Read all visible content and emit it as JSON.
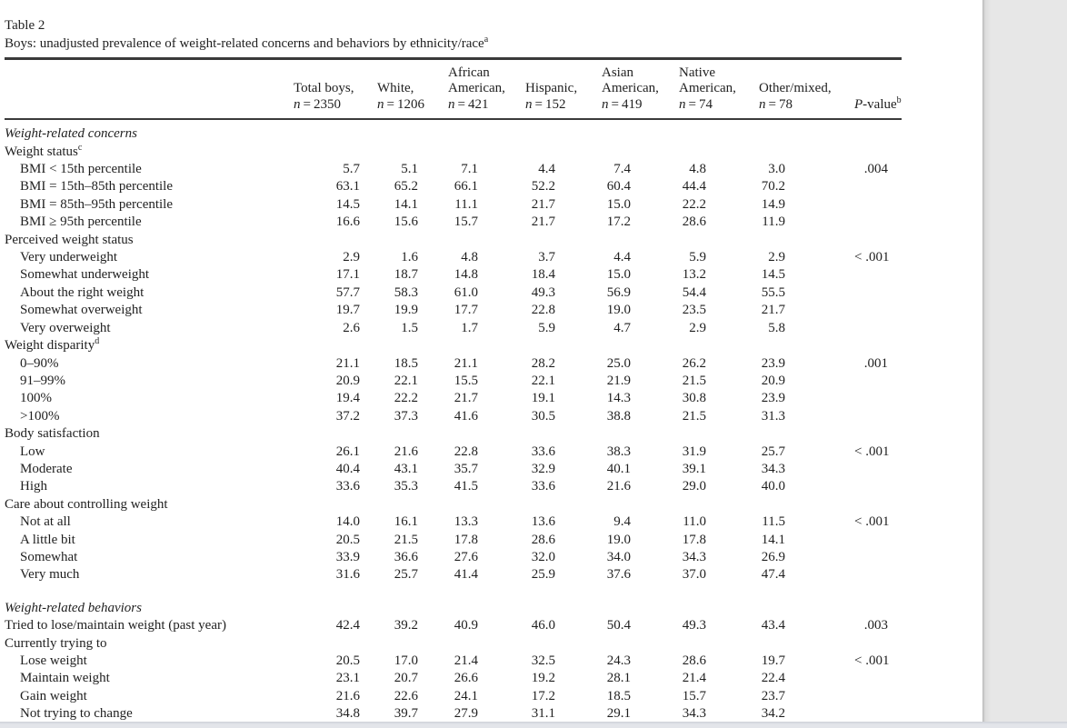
{
  "page": {
    "table_number": "Table 2",
    "caption": "Boys: unadjusted prevalence of weight-related concerns and behaviors by ethnicity/race",
    "caption_superscript": "a"
  },
  "colors": {
    "text": "#1f1f1f",
    "rule": "#3a3a3a",
    "page_edge_bar": "#e7e7e7",
    "bottom_strip": "#e3e5ea"
  },
  "table": {
    "columns": [
      {
        "lines": [
          "Total boys,"
        ],
        "n_var": "n",
        "n": "2350"
      },
      {
        "lines": [
          "White,"
        ],
        "n_var": "n",
        "n": "1206"
      },
      {
        "lines": [
          "African",
          "American,"
        ],
        "n_var": "n",
        "n": "421"
      },
      {
        "lines": [
          "Hispanic,"
        ],
        "n_var": "n",
        "n": "152"
      },
      {
        "lines": [
          "Asian",
          "American,"
        ],
        "n_var": "n",
        "n": "419"
      },
      {
        "lines": [
          "Native",
          "American,"
        ],
        "n_var": "n",
        "n": "74"
      },
      {
        "lines": [
          "Other/mixed,"
        ],
        "n_var": "n",
        "n": "78"
      },
      {
        "p_label": "P",
        "p_rest": "-value",
        "p_sup": "b"
      }
    ],
    "rows": [
      {
        "label": "Weight-related concerns",
        "italic": true,
        "indent": 0,
        "values": [
          "",
          "",
          "",
          "",
          "",
          "",
          "",
          ""
        ]
      },
      {
        "label": "Weight status",
        "sup": "c",
        "indent": 0,
        "values": [
          "",
          "",
          "",
          "",
          "",
          "",
          "",
          ""
        ]
      },
      {
        "label": "BMI < 15th percentile",
        "indent": 1,
        "values": [
          "5.7",
          "5.1",
          "7.1",
          "4.4",
          "7.4",
          "4.8",
          "3.0",
          ".004"
        ]
      },
      {
        "label": "BMI = 15th–85th percentile",
        "indent": 1,
        "values": [
          "63.1",
          "65.2",
          "66.1",
          "52.2",
          "60.4",
          "44.4",
          "70.2",
          ""
        ]
      },
      {
        "label": "BMI = 85th–95th percentile",
        "indent": 1,
        "values": [
          "14.5",
          "14.1",
          "11.1",
          "21.7",
          "15.0",
          "22.2",
          "14.9",
          ""
        ]
      },
      {
        "label": "BMI ≥ 95th percentile",
        "indent": 1,
        "values": [
          "16.6",
          "15.6",
          "15.7",
          "21.7",
          "17.2",
          "28.6",
          "11.9",
          ""
        ]
      },
      {
        "label": "Perceived weight status",
        "indent": 0,
        "values": [
          "",
          "",
          "",
          "",
          "",
          "",
          "",
          ""
        ]
      },
      {
        "label": "Very underweight",
        "indent": 1,
        "values": [
          "2.9",
          "1.6",
          "4.8",
          "3.7",
          "4.4",
          "5.9",
          "2.9",
          "< .001"
        ]
      },
      {
        "label": "Somewhat underweight",
        "indent": 1,
        "values": [
          "17.1",
          "18.7",
          "14.8",
          "18.4",
          "15.0",
          "13.2",
          "14.5",
          ""
        ]
      },
      {
        "label": "About the right weight",
        "indent": 1,
        "values": [
          "57.7",
          "58.3",
          "61.0",
          "49.3",
          "56.9",
          "54.4",
          "55.5",
          ""
        ]
      },
      {
        "label": "Somewhat overweight",
        "indent": 1,
        "values": [
          "19.7",
          "19.9",
          "17.7",
          "22.8",
          "19.0",
          "23.5",
          "21.7",
          ""
        ]
      },
      {
        "label": "Very overweight",
        "indent": 1,
        "values": [
          "2.6",
          "1.5",
          "1.7",
          "5.9",
          "4.7",
          "2.9",
          "5.8",
          ""
        ]
      },
      {
        "label": "Weight disparity",
        "sup": "d",
        "indent": 0,
        "values": [
          "",
          "",
          "",
          "",
          "",
          "",
          "",
          ""
        ]
      },
      {
        "label": "0–90%",
        "indent": 1,
        "values": [
          "21.1",
          "18.5",
          "21.1",
          "28.2",
          "25.0",
          "26.2",
          "23.9",
          ".001"
        ]
      },
      {
        "label": "91–99%",
        "indent": 1,
        "values": [
          "20.9",
          "22.1",
          "15.5",
          "22.1",
          "21.9",
          "21.5",
          "20.9",
          ""
        ]
      },
      {
        "label": "100%",
        "indent": 1,
        "values": [
          "19.4",
          "22.2",
          "21.7",
          "19.1",
          "14.3",
          "30.8",
          "23.9",
          ""
        ]
      },
      {
        "label": ">100%",
        "indent": 1,
        "values": [
          "37.2",
          "37.3",
          "41.6",
          "30.5",
          "38.8",
          "21.5",
          "31.3",
          ""
        ]
      },
      {
        "label": "Body satisfaction",
        "indent": 0,
        "values": [
          "",
          "",
          "",
          "",
          "",
          "",
          "",
          ""
        ]
      },
      {
        "label": "Low",
        "indent": 1,
        "values": [
          "26.1",
          "21.6",
          "22.8",
          "33.6",
          "38.3",
          "31.9",
          "25.7",
          "< .001"
        ]
      },
      {
        "label": "Moderate",
        "indent": 1,
        "values": [
          "40.4",
          "43.1",
          "35.7",
          "32.9",
          "40.1",
          "39.1",
          "34.3",
          ""
        ]
      },
      {
        "label": "High",
        "indent": 1,
        "values": [
          "33.6",
          "35.3",
          "41.5",
          "33.6",
          "21.6",
          "29.0",
          "40.0",
          ""
        ]
      },
      {
        "label": "Care about controlling weight",
        "indent": 0,
        "values": [
          "",
          "",
          "",
          "",
          "",
          "",
          "",
          ""
        ]
      },
      {
        "label": "Not at all",
        "indent": 1,
        "values": [
          "14.0",
          "16.1",
          "13.3",
          "13.6",
          "9.4",
          "11.0",
          "11.5",
          "< .001"
        ]
      },
      {
        "label": "A little bit",
        "indent": 1,
        "values": [
          "20.5",
          "21.5",
          "17.8",
          "28.6",
          "19.0",
          "17.8",
          "14.1",
          ""
        ]
      },
      {
        "label": "Somewhat",
        "indent": 1,
        "values": [
          "33.9",
          "36.6",
          "27.6",
          "32.0",
          "34.0",
          "34.3",
          "26.9",
          ""
        ]
      },
      {
        "label": "Very much",
        "indent": 1,
        "values": [
          "31.6",
          "25.7",
          "41.4",
          "25.9",
          "37.6",
          "37.0",
          "47.4",
          ""
        ]
      },
      {
        "spacer": true
      },
      {
        "label": "Weight-related behaviors",
        "italic": true,
        "indent": 0,
        "values": [
          "",
          "",
          "",
          "",
          "",
          "",
          "",
          ""
        ]
      },
      {
        "label": "Tried to lose/maintain weight (past year)",
        "indent": 0,
        "values": [
          "42.4",
          "39.2",
          "40.9",
          "46.0",
          "50.4",
          "49.3",
          "43.4",
          ".003"
        ]
      },
      {
        "label": "Currently trying to",
        "indent": 0,
        "values": [
          "",
          "",
          "",
          "",
          "",
          "",
          "",
          ""
        ]
      },
      {
        "label": "Lose weight",
        "indent": 1,
        "values": [
          "20.5",
          "17.0",
          "21.4",
          "32.5",
          "24.3",
          "28.6",
          "19.7",
          "< .001"
        ]
      },
      {
        "label": "Maintain weight",
        "indent": 1,
        "values": [
          "23.1",
          "20.7",
          "26.6",
          "19.2",
          "28.1",
          "21.4",
          "22.4",
          ""
        ]
      },
      {
        "label": "Gain weight",
        "indent": 1,
        "values": [
          "21.6",
          "22.6",
          "24.1",
          "17.2",
          "18.5",
          "15.7",
          "23.7",
          ""
        ]
      },
      {
        "label": "Not trying to change",
        "indent": 1,
        "values": [
          "34.8",
          "39.7",
          "27.9",
          "31.1",
          "29.1",
          "34.3",
          "34.2",
          ""
        ]
      }
    ]
  }
}
